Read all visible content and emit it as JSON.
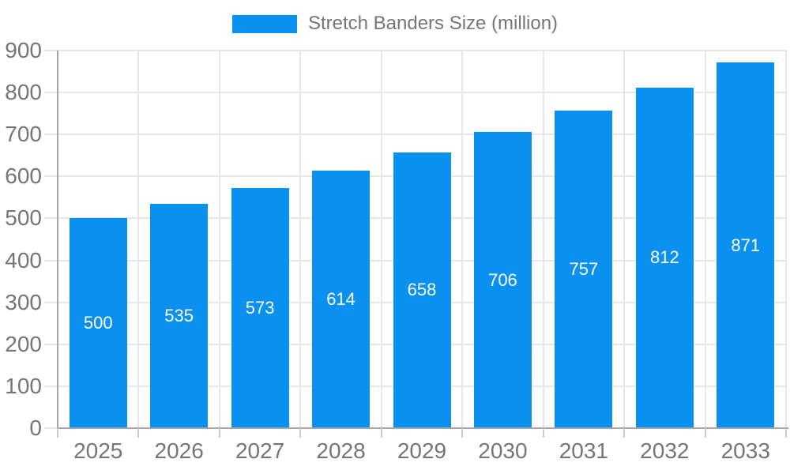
{
  "chart_data": {
    "type": "bar",
    "title": "",
    "categories": [
      "2025",
      "2026",
      "2027",
      "2028",
      "2029",
      "2030",
      "2031",
      "2032",
      "2033"
    ],
    "series": [
      {
        "name": "Stretch Banders Size (million)",
        "values": [
          500,
          535,
          573,
          614,
          658,
          706,
          757,
          812,
          871
        ]
      }
    ],
    "xlabel": "",
    "ylabel": "",
    "ylim": [
      0,
      900
    ],
    "yticks": [
      0,
      100,
      200,
      300,
      400,
      500,
      600,
      700,
      800,
      900
    ],
    "grid": true,
    "legend_position": "top-center",
    "value_labels": "inside-center"
  },
  "colors": {
    "bar": "#0a90ee",
    "axis_line": "#a6a6a6",
    "grid_line": "#e7e7e7",
    "x_tick_mark": "#cccccc",
    "tick_label": "#757575",
    "value_label": "#ffffff",
    "background": "#ffffff"
  }
}
